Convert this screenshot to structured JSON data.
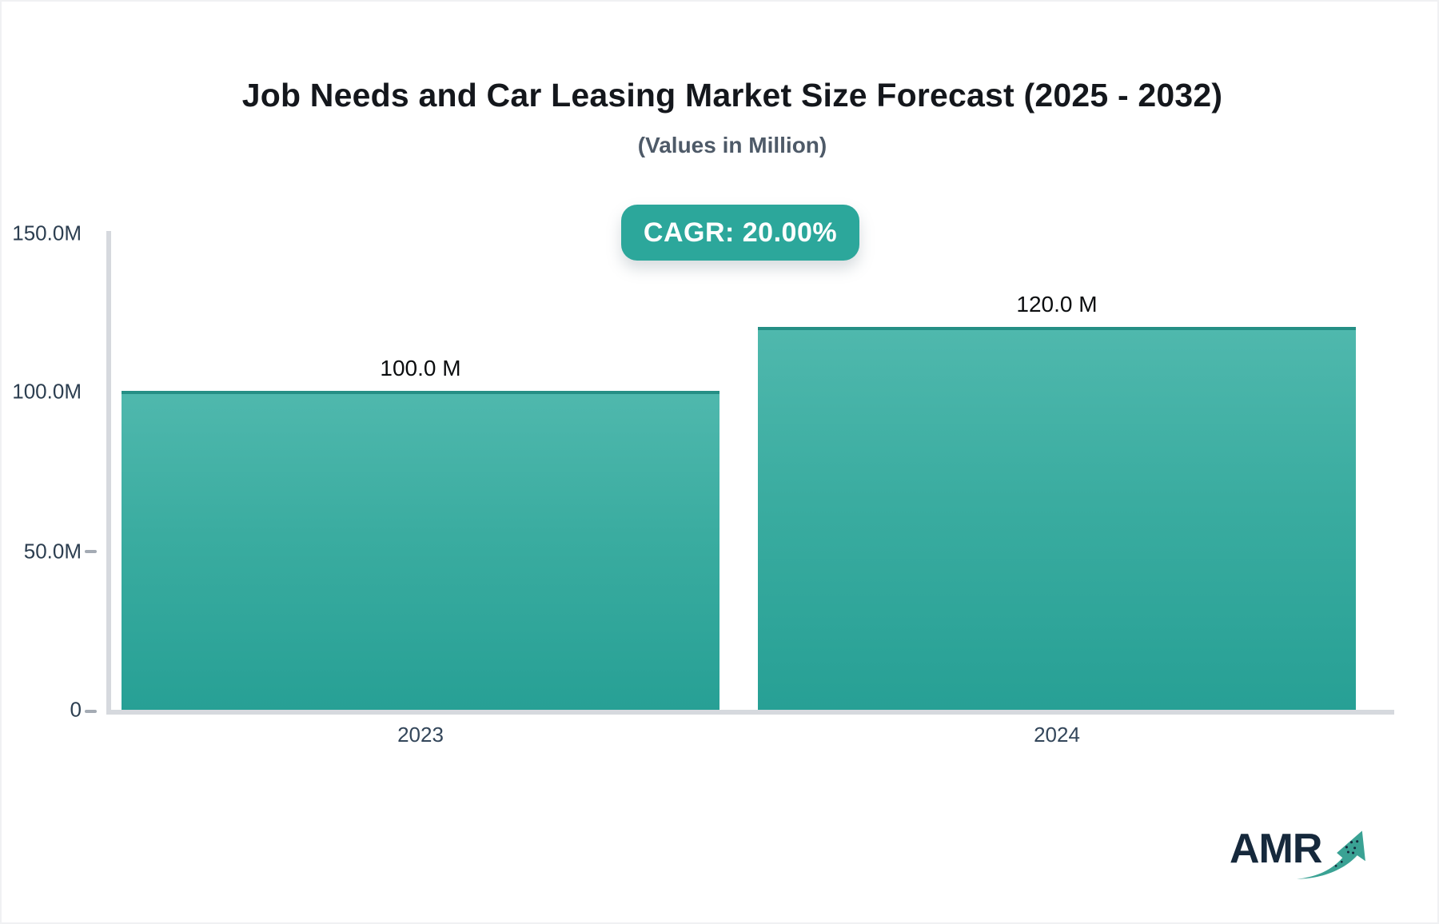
{
  "header": {
    "title": "Job Needs and Car Leasing Market Size Forecast (2025 - 2032)",
    "subtitle": "(Values in Million)"
  },
  "badge": {
    "label": "CAGR: 20.00%"
  },
  "chart_data": {
    "type": "bar",
    "title": "Job Needs and Car Leasing Market Size Forecast (2025 - 2032)",
    "subtitle": "(Values in Million)",
    "unit": "Million",
    "cagr_percent": 20.0,
    "categories": [
      "2023",
      "2024"
    ],
    "values": [
      100.0,
      120.0
    ],
    "bar_labels": [
      "100.0 M",
      "120.0 M"
    ],
    "ylim": [
      0,
      150
    ],
    "y_ticks": [
      {
        "label": "150.0M",
        "value": 150
      },
      {
        "label": "100.0M",
        "value": 100
      },
      {
        "label": "50.0M",
        "value": 50
      },
      {
        "label": "0",
        "value": 0
      }
    ],
    "grid": false,
    "legend": "none",
    "bar_gradient_top": "#4fb8ad",
    "bar_gradient_bottom": "#27a095",
    "bar_top_border": "#258f85"
  },
  "logo": {
    "text": "AMR",
    "arrow": "growth-arrow"
  },
  "colors": {
    "badge_bg": "#2ca79b",
    "axis_line": "#d6d9de",
    "tick_mark": "#a4abb4",
    "axis_text": "#2c3e50",
    "title_text": "#14171c",
    "subtitle_text": "#4e5a68",
    "value_text": "#0b0d0f",
    "logo_text": "#16293c",
    "logo_arrow": "#3aa294"
  }
}
